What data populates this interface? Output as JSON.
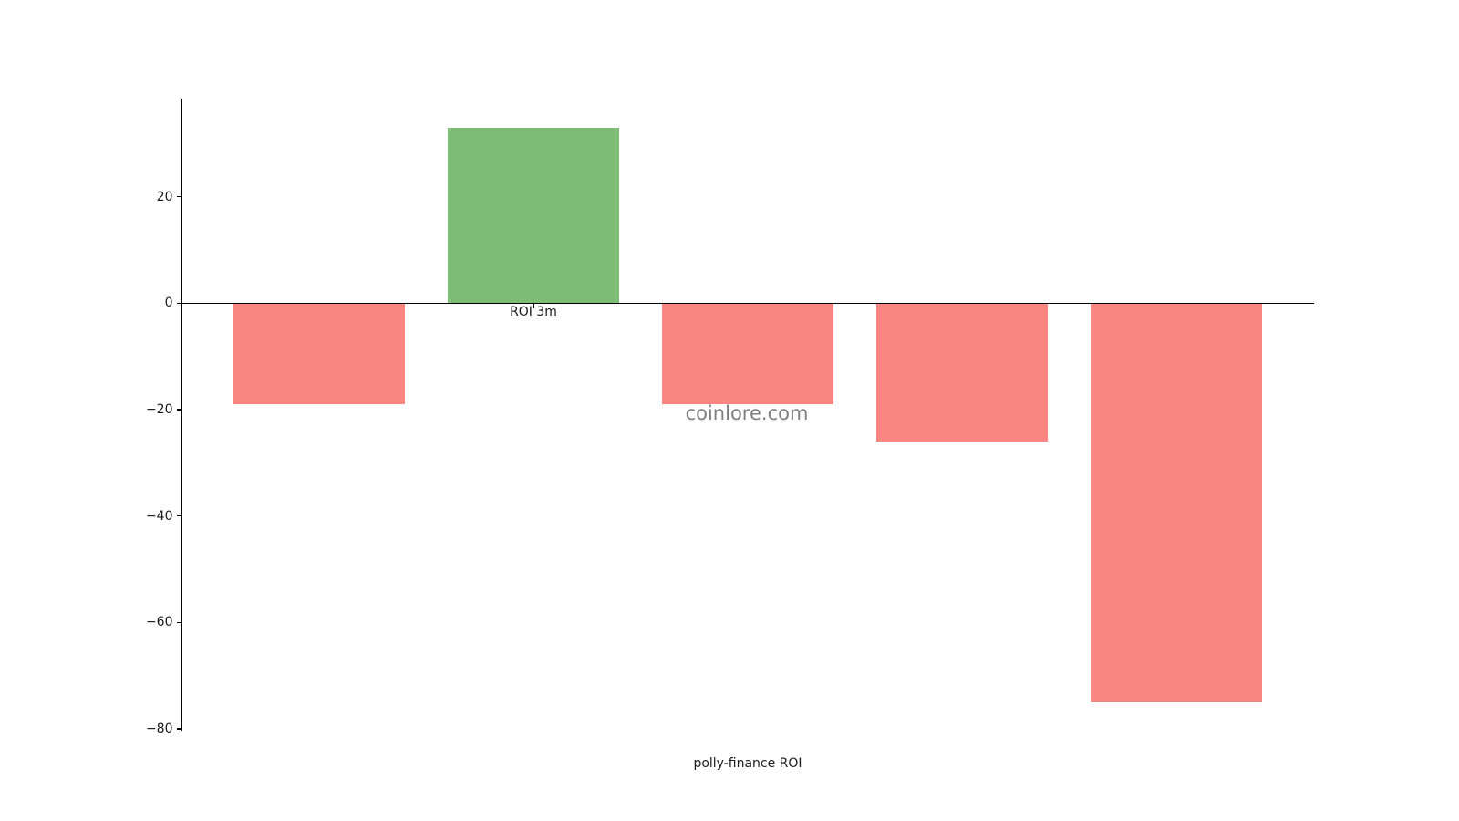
{
  "chart_data": {
    "type": "bar",
    "xlabel": "polly-finance ROI",
    "categories": [
      "",
      "ROI 3m",
      "",
      "",
      ""
    ],
    "values": [
      -19,
      33,
      -19,
      -26,
      -75
    ],
    "bar_colors": [
      "#fa8581",
      "#7dbc75",
      "#fa8581",
      "#fa8581",
      "#fa8581"
    ],
    "positive_color": "#7dbc75",
    "negative_color": "#fa8581",
    "ylim": [
      -80.4,
      38.4
    ],
    "yticks": [
      {
        "value": 20,
        "label": "20"
      },
      {
        "value": 0,
        "label": "0"
      },
      {
        "value": -20,
        "label": "−20"
      },
      {
        "value": -40,
        "label": "−40"
      },
      {
        "value": -60,
        "label": "−60"
      },
      {
        "value": -80,
        "label": "−80"
      }
    ],
    "grid": false,
    "legend_position": "none",
    "watermark": "coinlore.com",
    "axis_color": "#000000",
    "tick_label_color": "#1a1a1a",
    "watermark_color": "#7f7f7f"
  }
}
